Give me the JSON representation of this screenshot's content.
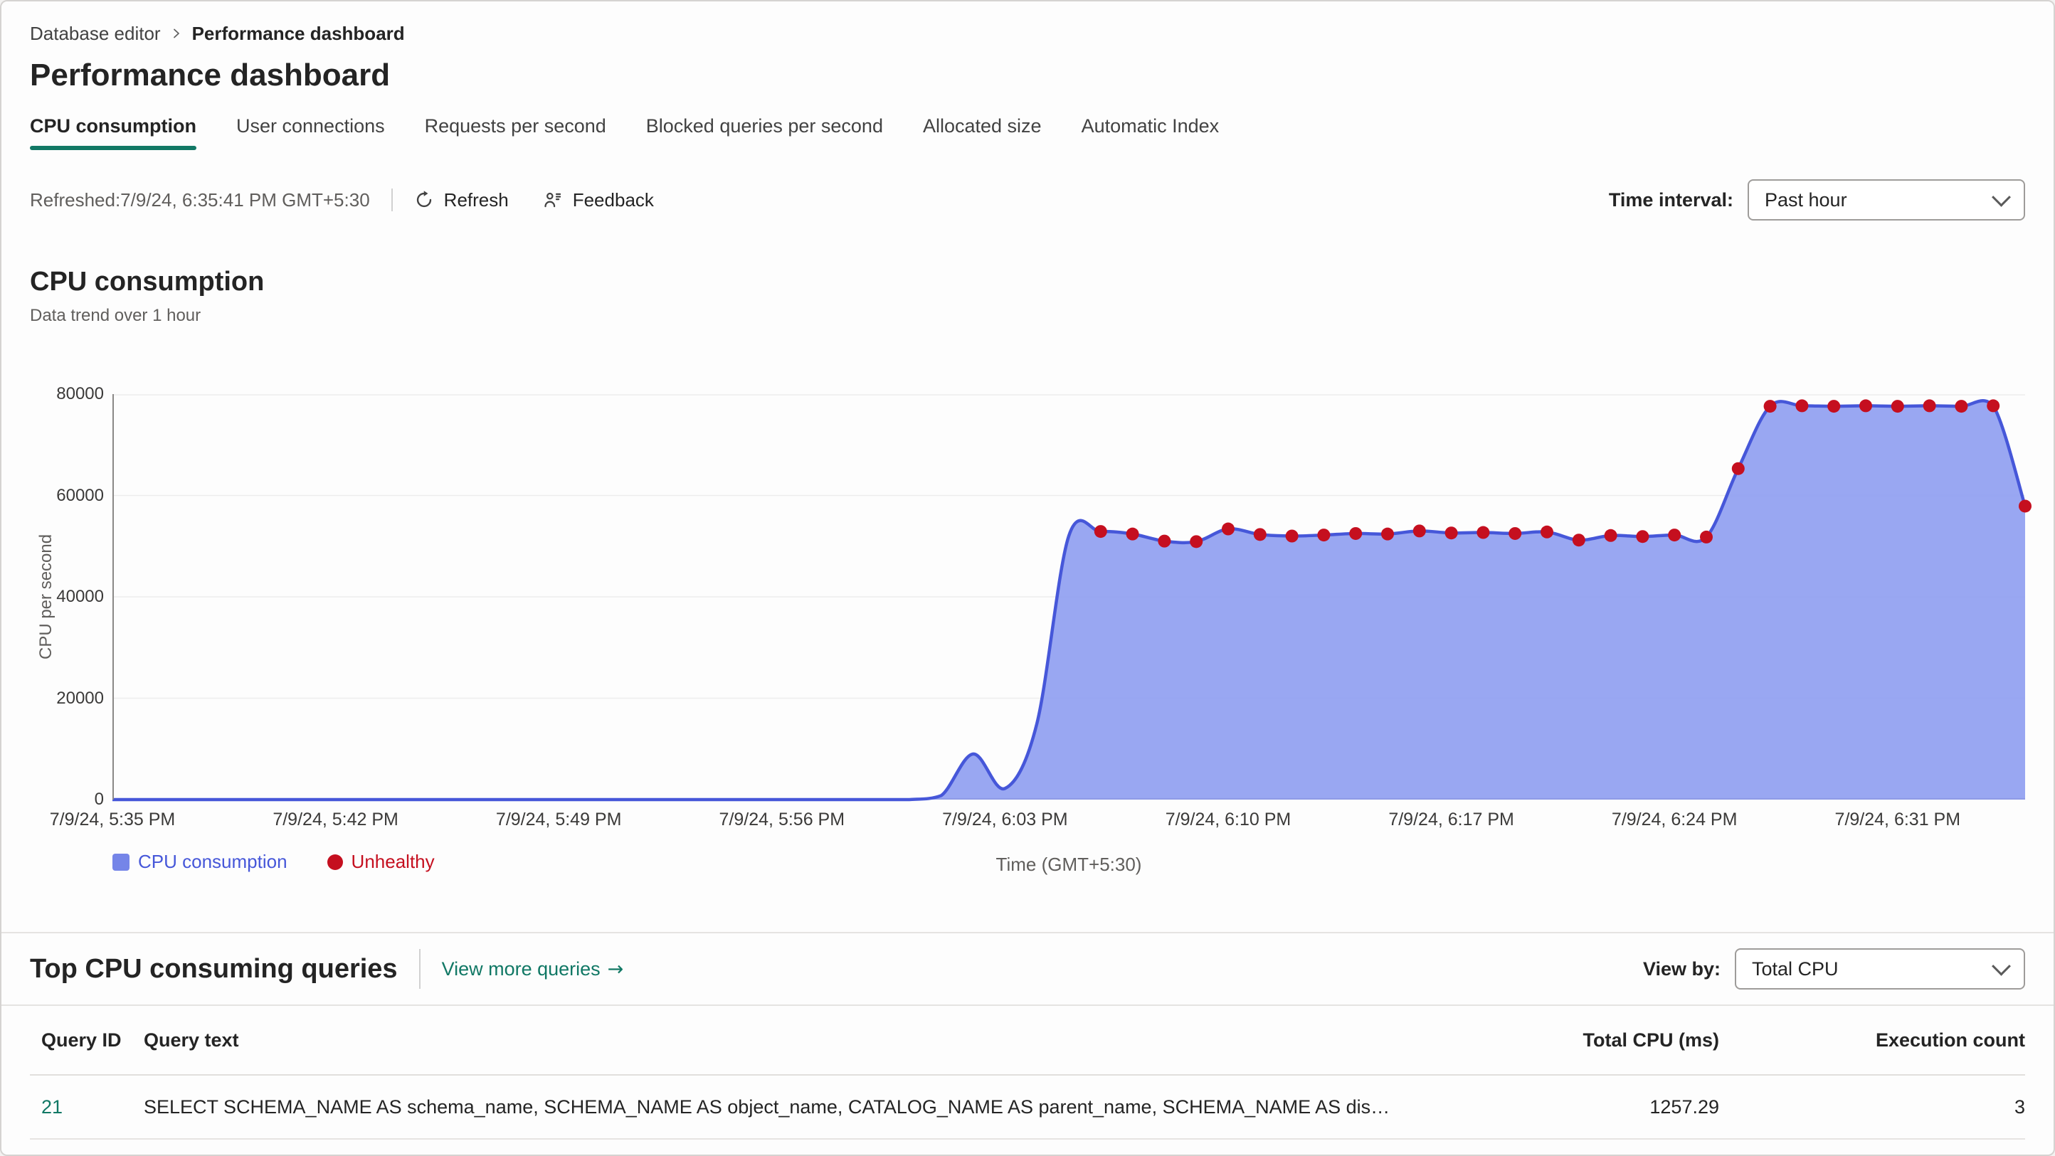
{
  "colors": {
    "accent": "#117865"
  },
  "breadcrumb": {
    "items": [
      "Database editor",
      "Performance dashboard"
    ]
  },
  "page": {
    "title": "Performance dashboard"
  },
  "tabs": [
    {
      "label": "CPU consumption",
      "active": true
    },
    {
      "label": "User connections",
      "active": false
    },
    {
      "label": "Requests per second",
      "active": false
    },
    {
      "label": "Blocked queries per second",
      "active": false
    },
    {
      "label": "Allocated size",
      "active": false
    },
    {
      "label": "Automatic Index",
      "active": false
    }
  ],
  "toolbar": {
    "refreshed": "Refreshed:7/9/24, 6:35:41 PM GMT+5:30",
    "refresh_label": "Refresh",
    "feedback_label": "Feedback",
    "time_interval_label": "Time interval:",
    "time_interval_value": "Past hour"
  },
  "chart_section": {
    "title": "CPU consumption",
    "subtitle": "Data trend over 1 hour"
  },
  "chart_data": {
    "type": "area",
    "title": "CPU consumption",
    "xlabel": "Time (GMT+5:30)",
    "ylabel": "CPU per second",
    "ylim": [
      0,
      80000
    ],
    "y_ticks": [
      0,
      20000,
      40000,
      60000,
      80000
    ],
    "x_range_minutes": [
      0,
      60
    ],
    "x_tick_minutes": [
      0,
      7,
      14,
      21,
      28,
      35,
      42,
      49,
      56
    ],
    "x_tick_labels": [
      "7/9/24, 5:35 PM",
      "7/9/24, 5:42 PM",
      "7/9/24, 5:49 PM",
      "7/9/24, 5:56 PM",
      "7/9/24, 6:03 PM",
      "7/9/24, 6:10 PM",
      "7/9/24, 6:17 PM",
      "7/9/24, 6:24 PM",
      "7/9/24, 6:31 PM"
    ],
    "grid": true,
    "legend_position": "bottom-left",
    "line_color": "#4657d9",
    "fill_color": "#8e9df1",
    "fill_opacity": 0.9,
    "dot_color": "#c50f1f",
    "axis_color": "#8a8886",
    "grid_color": "#ededed",
    "series": [
      {
        "name": "CPU consumption",
        "minutes": [
          0,
          1,
          2,
          3,
          4,
          5,
          6,
          7,
          8,
          9,
          10,
          11,
          12,
          13,
          14,
          15,
          16,
          17,
          18,
          19,
          20,
          21,
          22,
          23,
          24,
          25,
          26,
          27,
          28,
          29,
          30,
          31,
          32,
          33,
          34,
          35,
          36,
          37,
          38,
          39,
          40,
          41,
          42,
          43,
          44,
          45,
          46,
          47,
          48,
          49,
          50,
          51,
          52,
          53,
          54,
          55,
          56,
          57,
          58,
          59,
          60
        ],
        "values": [
          0,
          0,
          0,
          0,
          0,
          0,
          0,
          0,
          0,
          0,
          0,
          0,
          0,
          0,
          0,
          0,
          0,
          0,
          0,
          0,
          0,
          0,
          0,
          0,
          0,
          0,
          800,
          9000,
          2200,
          15000,
          52000,
          52900,
          52400,
          51000,
          50900,
          53400,
          52300,
          52000,
          52200,
          52500,
          52400,
          53000,
          52600,
          52700,
          52500,
          52800,
          51200,
          52100,
          51900,
          52200,
          51800,
          65300,
          77600,
          77700,
          77600,
          77700,
          77600,
          77700,
          77600,
          77700,
          57900
        ],
        "unhealthy_indices": [
          31,
          32,
          33,
          34,
          35,
          36,
          37,
          38,
          39,
          40,
          41,
          42,
          43,
          44,
          45,
          46,
          47,
          48,
          49,
          50,
          51,
          52,
          53,
          54,
          55,
          56,
          57,
          58,
          59,
          60
        ]
      }
    ]
  },
  "legend": [
    {
      "label": "CPU consumption",
      "type": "square",
      "color": "#7585e8",
      "text_color": "#4657d9"
    },
    {
      "label": "Unhealthy",
      "type": "circle",
      "color": "#c50f1f",
      "text_color": "#c50f1f"
    }
  ],
  "queries_section": {
    "title": "Top CPU consuming queries",
    "view_more": "View more queries",
    "view_more_arrow": "→",
    "view_by_label": "View by:",
    "view_by_value": "Total CPU"
  },
  "table": {
    "columns": [
      "Query ID",
      "Query text",
      "Total CPU (ms)",
      "Execution count"
    ],
    "rows": [
      {
        "id": "21",
        "text": "SELECT SCHEMA_NAME AS schema_name, SCHEMA_NAME AS object_name, CATALOG_NAME AS parent_name, SCHEMA_NAME AS displ...",
        "total_cpu": "1257.29",
        "exec_count": "3"
      }
    ]
  }
}
